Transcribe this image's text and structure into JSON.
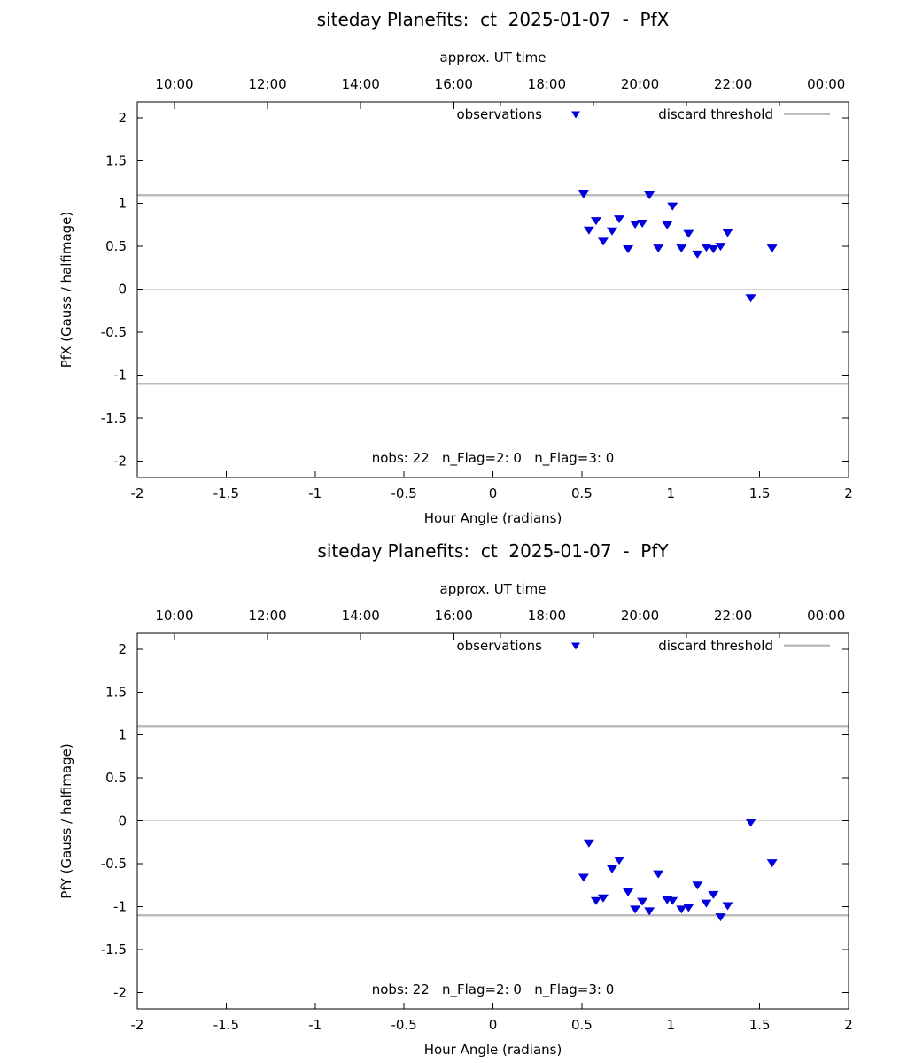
{
  "page": {
    "background": "#ffffff"
  },
  "colors": {
    "observation_marker": "#0000dd",
    "discard_threshold_line": "#bdbdbd",
    "zero_gridline": "#d6d6d6",
    "plot_border": "#000000",
    "text": "#000000"
  },
  "chart_data": [
    {
      "type": "scatter",
      "title": "siteday Planefits:  ct  2025-01-07  -  PfX",
      "x2label": "approx. UT time",
      "xlabel": "Hour Angle (radians)",
      "ylabel": "PfX (Gauss / halfimage)",
      "xlim": [
        -2,
        2
      ],
      "ylim": [
        -2.19,
        2.19
      ],
      "grid": "off",
      "legend_position": "top-inside",
      "annotation": "nobs: 22   n_Flag=2: 0   n_Flag=3: 0",
      "discard_threshold": [
        1.1,
        -1.1
      ],
      "zero_line": 0,
      "x_ticks": [
        {
          "v": -2,
          "label": "-2"
        },
        {
          "v": -1.5,
          "label": "-1.5"
        },
        {
          "v": -1,
          "label": "-1"
        },
        {
          "v": -0.5,
          "label": "-0.5"
        },
        {
          "v": 0,
          "label": "0"
        },
        {
          "v": 0.5,
          "label": "0.5"
        },
        {
          "v": 1,
          "label": "1"
        },
        {
          "v": 1.5,
          "label": "1.5"
        },
        {
          "v": 2,
          "label": "2"
        }
      ],
      "y_ticks": [
        {
          "v": 2,
          "label": "2"
        },
        {
          "v": 1.5,
          "label": "1.5"
        },
        {
          "v": 1,
          "label": "1"
        },
        {
          "v": 0.5,
          "label": "0.5"
        },
        {
          "v": 0,
          "label": "0"
        },
        {
          "v": -0.5,
          "label": "-0.5"
        },
        {
          "v": -1,
          "label": "-1"
        },
        {
          "v": -1.5,
          "label": "-1.5"
        },
        {
          "v": -2,
          "label": "-2"
        }
      ],
      "x2_ticks_major": [
        {
          "v": -1.791,
          "label": "10:00"
        },
        {
          "v": -1.2674,
          "label": "12:00"
        },
        {
          "v": -0.7438,
          "label": "14:00"
        },
        {
          "v": -0.2202,
          "label": "16:00"
        },
        {
          "v": 0.3034,
          "label": "18:00"
        },
        {
          "v": 0.827,
          "label": "20:00"
        },
        {
          "v": 1.3506,
          "label": "22:00"
        },
        {
          "v": 1.8742,
          "label": "00:00"
        }
      ],
      "x2_ticks_minor": [
        -1.5292,
        -1.0056,
        -0.482,
        0.0416,
        0.5652,
        1.0888,
        1.6124
      ],
      "legend": [
        {
          "label": "observations",
          "sample": "triangle-down-marker"
        },
        {
          "label": "discard threshold",
          "sample": "gray-line"
        }
      ],
      "series": [
        {
          "name": "observations",
          "marker": "triangle-down",
          "color": "#0000dd",
          "points": [
            [
              0.51,
              1.11
            ],
            [
              0.54,
              0.69
            ],
            [
              0.58,
              0.8
            ],
            [
              0.62,
              0.56
            ],
            [
              0.67,
              0.68
            ],
            [
              0.71,
              0.82
            ],
            [
              0.76,
              0.47
            ],
            [
              0.8,
              0.76
            ],
            [
              0.84,
              0.77
            ],
            [
              0.88,
              1.1
            ],
            [
              0.93,
              0.48
            ],
            [
              0.98,
              0.75
            ],
            [
              1.01,
              0.97
            ],
            [
              1.06,
              0.48
            ],
            [
              1.1,
              0.65
            ],
            [
              1.15,
              0.41
            ],
            [
              1.2,
              0.49
            ],
            [
              1.24,
              0.47
            ],
            [
              1.28,
              0.5
            ],
            [
              1.32,
              0.66
            ],
            [
              1.45,
              -0.1
            ],
            [
              1.57,
              0.48
            ]
          ]
        }
      ]
    },
    {
      "type": "scatter",
      "title": "siteday Planefits:  ct  2025-01-07  -  PfY",
      "x2label": "approx. UT time",
      "xlabel": "Hour Angle (radians)",
      "ylabel": "PfY (Gauss / halfimage)",
      "xlim": [
        -2,
        2
      ],
      "ylim": [
        -2.19,
        2.19
      ],
      "grid": "off",
      "legend_position": "top-inside",
      "annotation": "nobs: 22   n_Flag=2: 0   n_Flag=3: 0",
      "discard_threshold": [
        1.1,
        -1.1
      ],
      "zero_line": 0,
      "x_ticks": [
        {
          "v": -2,
          "label": "-2"
        },
        {
          "v": -1.5,
          "label": "-1.5"
        },
        {
          "v": -1,
          "label": "-1"
        },
        {
          "v": -0.5,
          "label": "-0.5"
        },
        {
          "v": 0,
          "label": "0"
        },
        {
          "v": 0.5,
          "label": "0.5"
        },
        {
          "v": 1,
          "label": "1"
        },
        {
          "v": 1.5,
          "label": "1.5"
        },
        {
          "v": 2,
          "label": "2"
        }
      ],
      "y_ticks": [
        {
          "v": 2,
          "label": "2"
        },
        {
          "v": 1.5,
          "label": "1.5"
        },
        {
          "v": 1,
          "label": "1"
        },
        {
          "v": 0.5,
          "label": "0.5"
        },
        {
          "v": 0,
          "label": "0"
        },
        {
          "v": -0.5,
          "label": "-0.5"
        },
        {
          "v": -1,
          "label": "-1"
        },
        {
          "v": -1.5,
          "label": "-1.5"
        },
        {
          "v": -2,
          "label": "-2"
        }
      ],
      "x2_ticks_major": [
        {
          "v": -1.791,
          "label": "10:00"
        },
        {
          "v": -1.2674,
          "label": "12:00"
        },
        {
          "v": -0.7438,
          "label": "14:00"
        },
        {
          "v": -0.2202,
          "label": "16:00"
        },
        {
          "v": 0.3034,
          "label": "18:00"
        },
        {
          "v": 0.827,
          "label": "20:00"
        },
        {
          "v": 1.3506,
          "label": "22:00"
        },
        {
          "v": 1.8742,
          "label": "00:00"
        }
      ],
      "x2_ticks_minor": [
        -1.5292,
        -1.0056,
        -0.482,
        0.0416,
        0.5652,
        1.0888,
        1.6124
      ],
      "legend": [
        {
          "label": "observations",
          "sample": "triangle-down-marker"
        },
        {
          "label": "discard threshold",
          "sample": "gray-line"
        }
      ],
      "series": [
        {
          "name": "observations",
          "marker": "triangle-down",
          "color": "#0000dd",
          "points": [
            [
              0.51,
              -0.66
            ],
            [
              0.54,
              -0.26
            ],
            [
              0.58,
              -0.93
            ],
            [
              0.62,
              -0.9
            ],
            [
              0.67,
              -0.56
            ],
            [
              0.71,
              -0.46
            ],
            [
              0.76,
              -0.83
            ],
            [
              0.8,
              -1.03
            ],
            [
              0.84,
              -0.94
            ],
            [
              0.88,
              -1.05
            ],
            [
              0.93,
              -0.62
            ],
            [
              0.98,
              -0.92
            ],
            [
              1.01,
              -0.93
            ],
            [
              1.06,
              -1.03
            ],
            [
              1.1,
              -1.01
            ],
            [
              1.15,
              -0.75
            ],
            [
              1.2,
              -0.96
            ],
            [
              1.24,
              -0.86
            ],
            [
              1.28,
              -1.12
            ],
            [
              1.32,
              -0.99
            ],
            [
              1.45,
              -0.02
            ],
            [
              1.57,
              -0.49
            ]
          ]
        }
      ]
    }
  ]
}
